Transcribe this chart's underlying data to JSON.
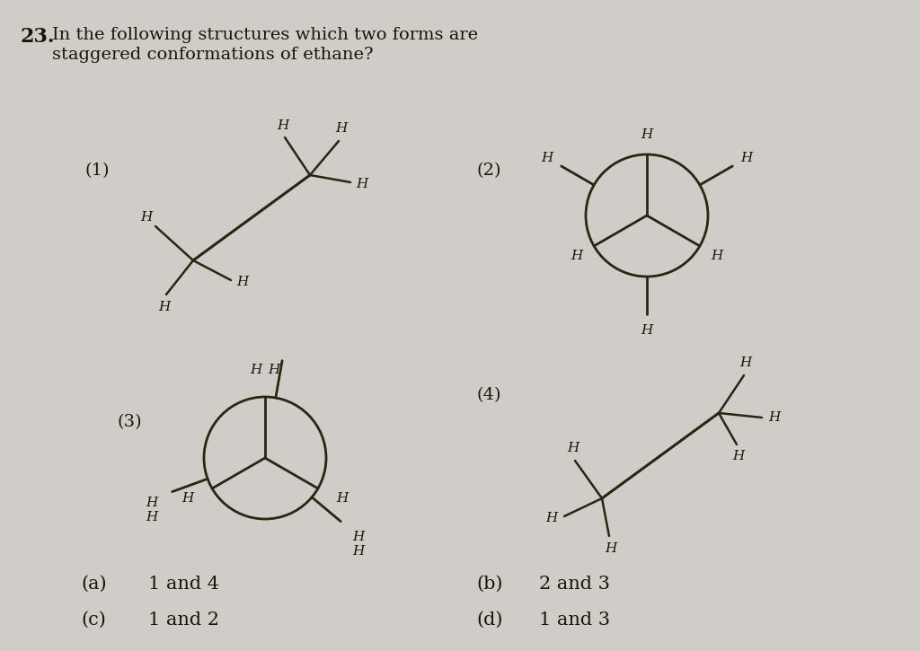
{
  "background_color": "#d0cdc8",
  "question_number": "23.",
  "question_text": "In the following structures which two forms are\nstaggered conformations of ethane?",
  "question_fontsize": 14,
  "answer_options": [
    {
      "label": "(a)",
      "text": "1 and 4"
    },
    {
      "label": "(b)",
      "text": "2 and 3"
    },
    {
      "label": "(c)",
      "text": "1 and 2"
    },
    {
      "label": "(d)",
      "text": "1 and 3"
    }
  ],
  "line_color": "#2a2510",
  "text_color": "#1a1505"
}
